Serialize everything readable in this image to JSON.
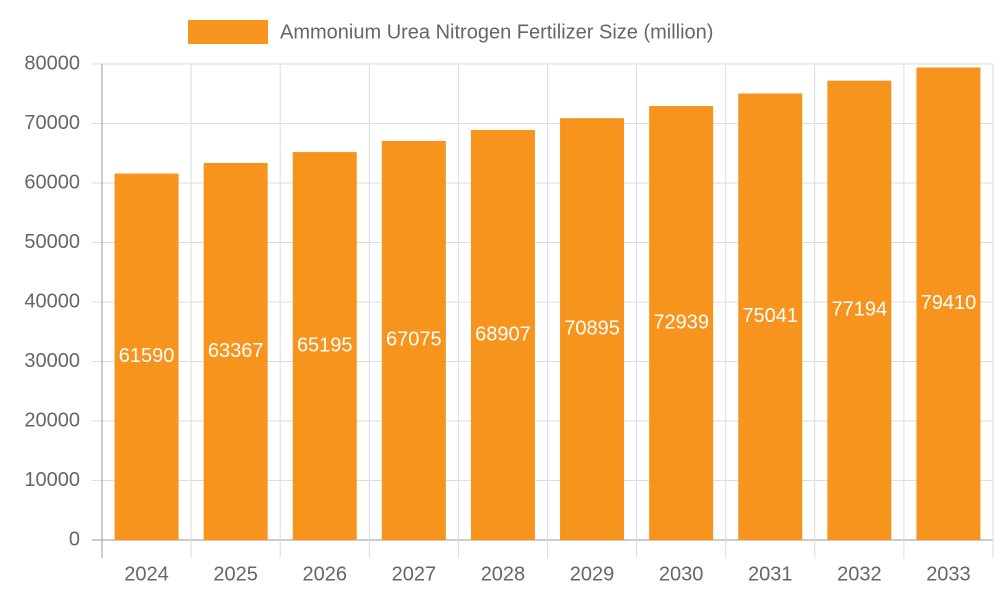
{
  "chart_data": {
    "type": "bar",
    "categories": [
      "2024",
      "2025",
      "2026",
      "2027",
      "2028",
      "2029",
      "2030",
      "2031",
      "2032",
      "2033"
    ],
    "series": [
      {
        "name": "Ammonium Urea Nitrogen Fertilizer Size (million)",
        "color": "#f7941e",
        "values": [
          61590,
          63367,
          65195,
          67075,
          68907,
          70895,
          72939,
          75041,
          77194,
          79410
        ]
      }
    ],
    "ylim": [
      0,
      80000
    ],
    "yticks": [
      0,
      10000,
      20000,
      30000,
      40000,
      50000,
      60000,
      70000,
      80000
    ],
    "grid": true,
    "legend": "top"
  }
}
